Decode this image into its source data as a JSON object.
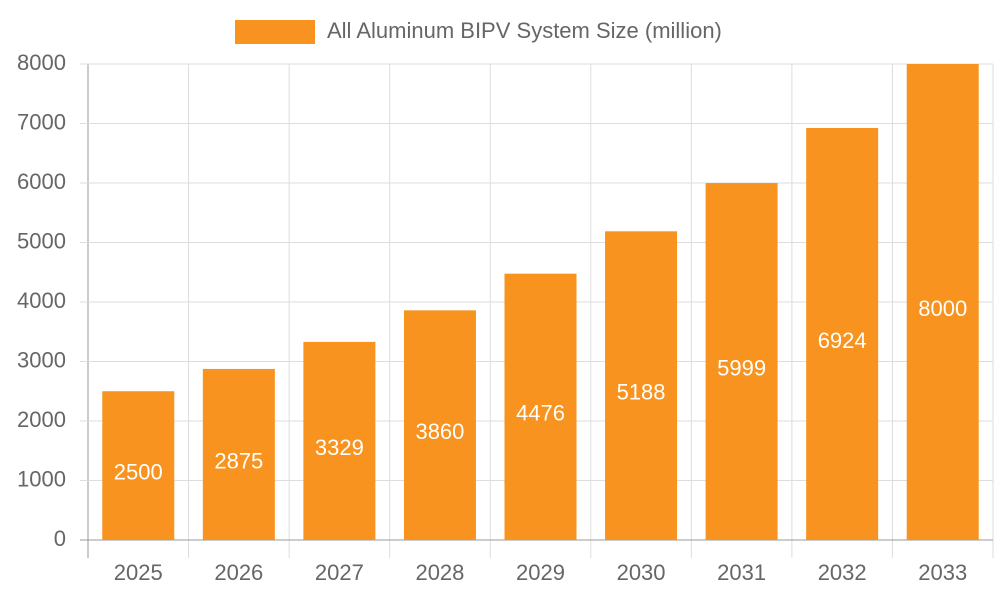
{
  "chart_data": {
    "type": "bar",
    "categories": [
      "2025",
      "2026",
      "2027",
      "2028",
      "2029",
      "2030",
      "2031",
      "2032",
      "2033"
    ],
    "series": [
      {
        "name": "All Aluminum BIPV System Size (million)",
        "color": "#f7931e",
        "values": [
          2500,
          2875,
          3329,
          3860,
          4476,
          5188,
          5999,
          6924,
          8000
        ]
      }
    ],
    "ylim": [
      0,
      8000
    ],
    "yticks": [
      0,
      1000,
      2000,
      3000,
      4000,
      5000,
      6000,
      7000,
      8000
    ],
    "grid": true,
    "legend": "top"
  }
}
